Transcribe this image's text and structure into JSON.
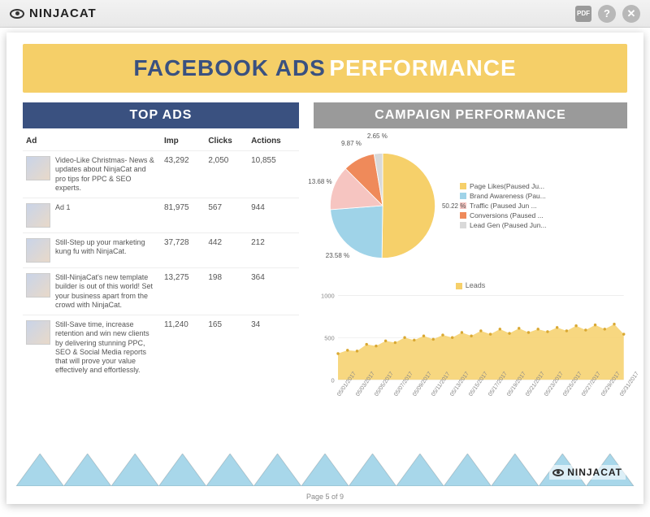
{
  "brand": "NINJACAT",
  "toolbar": {
    "pdf_label": "PDF",
    "help_label": "?",
    "close_label": "✕"
  },
  "banner": {
    "title_1": "FACEBOOK ADS",
    "title_2": "PERFORMANCE",
    "bg_color": "#f5cf68",
    "title_1_color": "#3a5180",
    "title_2_color": "#ffffff"
  },
  "left": {
    "header": "TOP ADS",
    "header_bg": "#3a5180",
    "columns": [
      "Ad",
      "Imp",
      "Clicks",
      "Actions"
    ],
    "rows": [
      {
        "text": "Video-Like Christmas- News & updates about NinjaCat and pro tips for PPC & SEO experts.",
        "imp": "43,292",
        "clicks": "2,050",
        "actions": "10,855"
      },
      {
        "text": "Ad 1",
        "imp": "81,975",
        "clicks": "567",
        "actions": "944"
      },
      {
        "text": "Still-Step up your marketing kung fu with NinjaCat.",
        "imp": "37,728",
        "clicks": "442",
        "actions": "212"
      },
      {
        "text": "Still-NinjaCat's new template builder is out of this world! Set your business apart from the crowd with NinjaCat.",
        "imp": "13,275",
        "clicks": "198",
        "actions": "364"
      },
      {
        "text": "Still-Save time, increase retention and win new clients by delivering stunning PPC, SEO & Social Media reports that will prove your value effectively and effortlessly.",
        "imp": "11,240",
        "clicks": "165",
        "actions": "34"
      }
    ]
  },
  "right": {
    "header": "CAMPAIGN PERFORMANCE",
    "header_bg": "#9a9a9a",
    "pie": {
      "slices": [
        {
          "label": "Page Likes(Paused Ju...",
          "pct": 50.22,
          "color": "#f6d06a"
        },
        {
          "label": "Brand Awareness (Pau...",
          "pct": 23.58,
          "color": "#9fd3e8"
        },
        {
          "label": "Traffic (Paused Jun ...",
          "pct": 13.68,
          "color": "#f6c5c1"
        },
        {
          "label": "Conversions (Paused ...",
          "pct": 9.87,
          "color": "#ef8a5a"
        },
        {
          "label": "Lead Gen (Paused Jun...",
          "pct": 2.65,
          "color": "#d9d9d9"
        }
      ]
    },
    "area": {
      "title": "Leads",
      "color": "#f6d06a",
      "ylim": [
        0,
        1000
      ],
      "ytick_step": 500,
      "x_labels": [
        "05/01/2017",
        "05/03/2017",
        "05/05/2017",
        "05/07/2017",
        "05/09/2017",
        "05/11/2017",
        "05/13/2017",
        "05/15/2017",
        "05/17/2017",
        "05/19/2017",
        "05/21/2017",
        "05/23/2017",
        "05/25/2017",
        "05/27/2017",
        "05/29/2017",
        "05/31/2017"
      ],
      "values": [
        310,
        350,
        340,
        420,
        400,
        460,
        440,
        500,
        470,
        520,
        480,
        530,
        500,
        560,
        520,
        580,
        540,
        600,
        550,
        610,
        560,
        600,
        570,
        620,
        580,
        640,
        590,
        650,
        600,
        660,
        540
      ]
    }
  },
  "footer_brand": "NINJACAT",
  "footer": "Page 5 of 9",
  "zigzag_color": "#9fd3e8"
}
